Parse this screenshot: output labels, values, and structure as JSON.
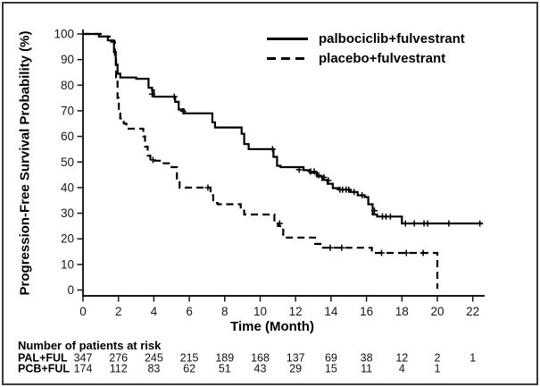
{
  "figure": {
    "background": "#ffffff",
    "border_color": "#3a3a3a",
    "curve_color": "#000000"
  },
  "chart_data": {
    "type": "line",
    "subtype": "kaplan-meier-step",
    "title": "",
    "xlabel": "Time (Month)",
    "ylabel": "Progression-Free Survival Probability (%)",
    "xlim": [
      0,
      22.6
    ],
    "ylim": [
      0,
      100
    ],
    "xticks": [
      0,
      2,
      4,
      6,
      8,
      10,
      12,
      14,
      16,
      18,
      20,
      22
    ],
    "yticks": [
      0,
      10,
      20,
      30,
      40,
      50,
      60,
      70,
      80,
      90,
      100
    ],
    "grid": false,
    "legend_position": "top-right",
    "series": [
      {
        "name": "palbociclib+fulvestrant",
        "line_style": "solid",
        "color": "#000000",
        "points": [
          [
            0,
            100
          ],
          [
            0.9,
            100
          ],
          [
            0.9,
            99
          ],
          [
            1.4,
            99
          ],
          [
            1.4,
            97.5
          ],
          [
            1.75,
            97.5
          ],
          [
            1.75,
            93
          ],
          [
            1.85,
            93
          ],
          [
            1.85,
            88
          ],
          [
            1.95,
            88
          ],
          [
            1.95,
            84.5
          ],
          [
            2.1,
            84.5
          ],
          [
            2.1,
            83
          ],
          [
            3.0,
            83
          ],
          [
            3.0,
            82.5
          ],
          [
            3.7,
            82.5
          ],
          [
            3.7,
            79
          ],
          [
            3.9,
            79
          ],
          [
            3.9,
            78
          ],
          [
            4.0,
            78
          ],
          [
            4.0,
            75.5
          ],
          [
            5.2,
            75.5
          ],
          [
            5.2,
            73.5
          ],
          [
            5.4,
            73.5
          ],
          [
            5.4,
            70.5
          ],
          [
            5.7,
            70.5
          ],
          [
            5.7,
            69
          ],
          [
            7.3,
            69
          ],
          [
            7.3,
            65.5
          ],
          [
            7.45,
            65.5
          ],
          [
            7.45,
            63.5
          ],
          [
            8.95,
            63.5
          ],
          [
            8.95,
            61
          ],
          [
            9.1,
            61
          ],
          [
            9.1,
            57
          ],
          [
            9.35,
            57
          ],
          [
            9.35,
            55
          ],
          [
            10.75,
            55
          ],
          [
            10.75,
            52
          ],
          [
            10.95,
            52
          ],
          [
            10.95,
            48.5
          ],
          [
            11.15,
            48.5
          ],
          [
            11.15,
            48
          ],
          [
            12.45,
            48
          ],
          [
            12.45,
            46.8
          ],
          [
            12.8,
            46.8
          ],
          [
            12.8,
            45.8
          ],
          [
            13.2,
            45.8
          ],
          [
            13.2,
            44.4
          ],
          [
            13.5,
            44.4
          ],
          [
            13.5,
            43
          ],
          [
            13.8,
            43
          ],
          [
            13.8,
            41.5
          ],
          [
            14.1,
            41.5
          ],
          [
            14.1,
            39.8
          ],
          [
            14.45,
            39.8
          ],
          [
            14.45,
            39.2
          ],
          [
            15.1,
            39.2
          ],
          [
            15.1,
            38.3
          ],
          [
            15.5,
            38.3
          ],
          [
            15.5,
            37
          ],
          [
            15.9,
            37
          ],
          [
            15.9,
            36.3
          ],
          [
            16.1,
            36.3
          ],
          [
            16.1,
            33.5
          ],
          [
            16.35,
            33.5
          ],
          [
            16.35,
            29.5
          ],
          [
            16.6,
            29.5
          ],
          [
            16.6,
            28.7
          ],
          [
            18.0,
            28.7
          ],
          [
            18.0,
            26
          ],
          [
            22.55,
            26
          ]
        ],
        "censor_marks": [
          [
            3.9,
            76.5
          ],
          [
            5.15,
            75.5
          ],
          [
            5.65,
            69.8
          ],
          [
            10.7,
            55
          ],
          [
            12.2,
            47
          ],
          [
            12.85,
            46.3
          ],
          [
            13.05,
            46.3
          ],
          [
            13.3,
            44.8
          ],
          [
            13.6,
            44
          ],
          [
            13.85,
            42.8
          ],
          [
            14.5,
            39.2
          ],
          [
            14.65,
            39.2
          ],
          [
            14.85,
            39.2
          ],
          [
            15.0,
            39.2
          ],
          [
            15.3,
            38.3
          ],
          [
            15.75,
            37
          ],
          [
            16.45,
            31
          ],
          [
            16.9,
            28.7
          ],
          [
            17.1,
            28.7
          ],
          [
            17.35,
            28.7
          ],
          [
            18.2,
            26
          ],
          [
            18.7,
            26
          ],
          [
            19.25,
            26
          ],
          [
            19.45,
            26
          ],
          [
            20.65,
            26
          ],
          [
            22.4,
            26
          ]
        ]
      },
      {
        "name": "placebo+fulvestrant",
        "line_style": "dashed",
        "color": "#000000",
        "points": [
          [
            0,
            100
          ],
          [
            1.0,
            100
          ],
          [
            1.0,
            99
          ],
          [
            1.5,
            99
          ],
          [
            1.5,
            97
          ],
          [
            1.8,
            97
          ],
          [
            1.8,
            91
          ],
          [
            1.87,
            91
          ],
          [
            1.87,
            83
          ],
          [
            1.95,
            83
          ],
          [
            1.95,
            75
          ],
          [
            2.02,
            75
          ],
          [
            2.02,
            69
          ],
          [
            2.1,
            69
          ],
          [
            2.1,
            67
          ],
          [
            2.3,
            67
          ],
          [
            2.3,
            65
          ],
          [
            2.45,
            65
          ],
          [
            2.45,
            63
          ],
          [
            3.4,
            63
          ],
          [
            3.4,
            60
          ],
          [
            3.5,
            60
          ],
          [
            3.5,
            56
          ],
          [
            3.65,
            56
          ],
          [
            3.65,
            52.5
          ],
          [
            3.8,
            52.5
          ],
          [
            3.8,
            50.5
          ],
          [
            4.4,
            50.5
          ],
          [
            4.4,
            49.5
          ],
          [
            5.0,
            49.5
          ],
          [
            5.0,
            48
          ],
          [
            5.3,
            48
          ],
          [
            5.3,
            43
          ],
          [
            5.45,
            43
          ],
          [
            5.45,
            40
          ],
          [
            7.2,
            40
          ],
          [
            7.2,
            37
          ],
          [
            7.35,
            37
          ],
          [
            7.35,
            34
          ],
          [
            7.6,
            34
          ],
          [
            7.6,
            33.5
          ],
          [
            8.9,
            33.5
          ],
          [
            8.9,
            31
          ],
          [
            9.1,
            31
          ],
          [
            9.1,
            29.5
          ],
          [
            10.8,
            29.5
          ],
          [
            10.8,
            26
          ],
          [
            11.0,
            26
          ],
          [
            11.0,
            25
          ],
          [
            11.3,
            25
          ],
          [
            11.3,
            21
          ],
          [
            11.5,
            21
          ],
          [
            11.5,
            20.5
          ],
          [
            13.1,
            20.5
          ],
          [
            13.1,
            18
          ],
          [
            13.4,
            18
          ],
          [
            13.4,
            16.5
          ],
          [
            13.8,
            16.5
          ],
          [
            16.3,
            16.5
          ],
          [
            16.3,
            14.5
          ],
          [
            16.6,
            14.5
          ],
          [
            20.0,
            14.5
          ],
          [
            20.0,
            0.5
          ]
        ],
        "censor_marks": [
          [
            3.95,
            50.8
          ],
          [
            7.05,
            40
          ],
          [
            11.1,
            26
          ],
          [
            13.95,
            16.5
          ],
          [
            14.6,
            16.5
          ],
          [
            16.85,
            14.5
          ],
          [
            18.25,
            14.5
          ],
          [
            19.2,
            14.5
          ]
        ]
      }
    ],
    "risk_table": {
      "title": "Number of patients at risk",
      "times": [
        0,
        2,
        4,
        6,
        8,
        10,
        12,
        14,
        16,
        18,
        20,
        22
      ],
      "rows": [
        {
          "label": "PAL+FUL",
          "counts": [
            "347",
            "276",
            "245",
            "215",
            "189",
            "168",
            "137",
            "69",
            "38",
            "12",
            "2",
            "1"
          ]
        },
        {
          "label": "PCB+FUL",
          "counts": [
            "174",
            "112",
            "83",
            "62",
            "51",
            "43",
            "29",
            "15",
            "11",
            "4",
            "1",
            ""
          ]
        }
      ]
    }
  }
}
